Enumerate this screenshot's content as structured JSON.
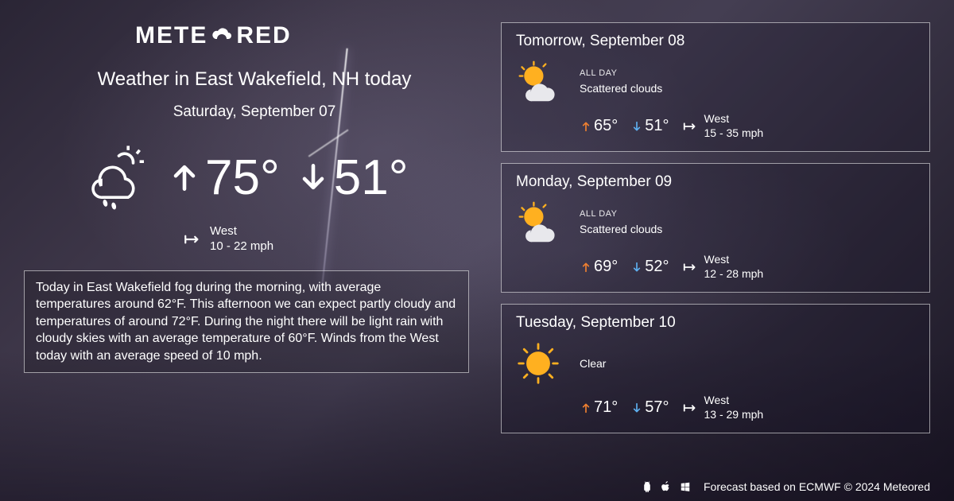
{
  "brand": {
    "name_part1": "METE",
    "name_part2": "RED"
  },
  "header": {
    "title": "Weather in East Wakefield, NH today",
    "date": "Saturday, September 07"
  },
  "today": {
    "high": "75°",
    "low": "51°",
    "wind_dir": "West",
    "wind_speed": "10 - 22 mph",
    "description": "Today in East Wakefield fog during the morning, with average temperatures around 62°F. This afternoon we can expect partly cloudy and temperatures of around 72°F. During the night there will be light rain with cloudy skies with an average temperature of 60°F. Winds from the West today with an average speed of 10 mph."
  },
  "forecast": [
    {
      "date": "Tomorrow, September 08",
      "allday_label": "ALL DAY",
      "condition": "Scattered clouds",
      "icon": "partly-cloudy",
      "high": "65°",
      "low": "51°",
      "wind_dir": "West",
      "wind_speed": "15 - 35 mph"
    },
    {
      "date": "Monday, September 09",
      "allday_label": "ALL DAY",
      "condition": "Scattered clouds",
      "icon": "partly-cloudy",
      "high": "69°",
      "low": "52°",
      "wind_dir": "West",
      "wind_speed": "12 - 28 mph"
    },
    {
      "date": "Tuesday, September 10",
      "allday_label": "",
      "condition": "Clear",
      "icon": "sunny",
      "high": "71°",
      "low": "57°",
      "wind_dir": "West",
      "wind_speed": "13 - 29 mph"
    }
  ],
  "footer": {
    "attribution": "Forecast based on ECMWF © 2024 Meteored"
  },
  "colors": {
    "high_arrow": "#f08030",
    "low_arrow": "#5eb0f0",
    "border": "rgba(255,255,255,0.55)",
    "text": "#ffffff"
  }
}
